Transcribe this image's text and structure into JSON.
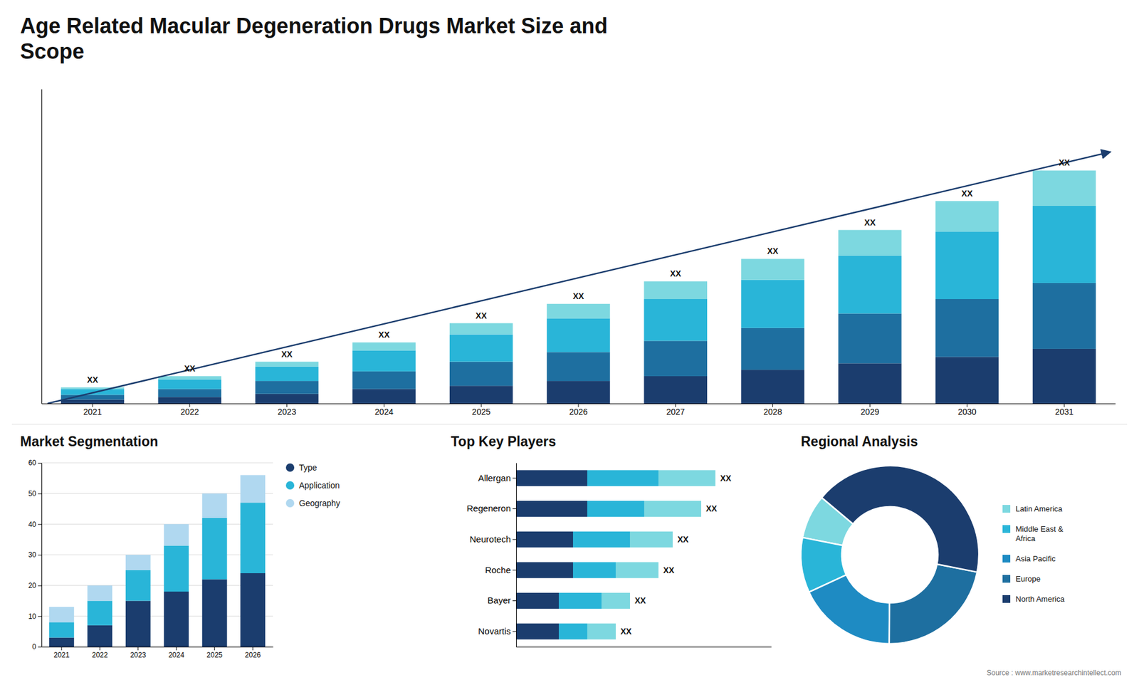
{
  "chart_data": [
    {
      "type": "bar",
      "title": "Age Related Macular Degeneration Drugs Market Size and\nScope",
      "stacked": true,
      "categories": [
        "2021",
        "2022",
        "2023",
        "2024",
        "2025",
        "2026",
        "2027",
        "2028",
        "2029",
        "2030",
        "2031"
      ],
      "series": [
        {
          "color": "#1b3d6e",
          "values": [
            1.2,
            2.0,
            3.0,
            4.5,
            5.5,
            7.0,
            8.5,
            10.5,
            12.5,
            14.5,
            17.0
          ]
        },
        {
          "color": "#1e6fa0",
          "values": [
            1.5,
            2.5,
            4.0,
            5.5,
            7.5,
            9.0,
            11.0,
            13.0,
            15.5,
            18.0,
            20.5
          ]
        },
        {
          "color": "#29b5d8",
          "values": [
            1.8,
            3.0,
            4.5,
            6.5,
            8.5,
            10.5,
            13.0,
            15.0,
            18.0,
            21.0,
            24.0
          ]
        },
        {
          "color": "#7dd8e0",
          "values": [
            0.5,
            1.0,
            1.5,
            2.5,
            3.5,
            4.5,
            5.5,
            6.5,
            8.0,
            9.5,
            11.0
          ],
          "value_labels": [
            "XX",
            "XX",
            "XX",
            "XX",
            "XX",
            "XX",
            "XX",
            "XX",
            "XX",
            "XX",
            "XX"
          ]
        }
      ],
      "ylim": [
        0,
        97.875
      ],
      "tick_labels": "x",
      "annotations": [
        "Source : www.marketresearchintellect.com"
      ]
    },
    {
      "type": "bar",
      "title": "Market Segmentation",
      "stacked": true,
      "categories": [
        "2021",
        "2022",
        "2023",
        "2024",
        "2025",
        "2026"
      ],
      "series": [
        {
          "name": "Type",
          "color": "#1b3d6e",
          "values": [
            3,
            7,
            15,
            18,
            22,
            24
          ]
        },
        {
          "name": "Application",
          "color": "#29b5d8",
          "values": [
            5,
            8,
            10,
            15,
            20,
            23
          ]
        },
        {
          "name": "Geography",
          "color": "#b0d8f0",
          "values": [
            5,
            5,
            5,
            7,
            8,
            9
          ]
        }
      ],
      "ylim": [
        0,
        60
      ],
      "yticks": [
        0,
        10,
        20,
        30,
        40,
        50,
        60
      ],
      "grid": true,
      "legend": "right"
    },
    {
      "type": "bar",
      "title": "Top Key Players",
      "orientation": "horizontal",
      "stacked": true,
      "categories": [
        "Allergan",
        "Regeneron",
        "Neurotech",
        "Roche",
        "Bayer",
        "Novartis"
      ],
      "series": [
        {
          "color": "#1b3d6e",
          "values": [
            5,
            5,
            4,
            4,
            3,
            3
          ]
        },
        {
          "color": "#29b5d8",
          "values": [
            5,
            4,
            4,
            3,
            3,
            2
          ]
        },
        {
          "color": "#7dd8e0",
          "values": [
            4,
            4,
            3,
            3,
            2,
            2
          ],
          "value_labels": [
            "XX",
            "XX",
            "XX",
            "XX",
            "XX",
            "XX"
          ]
        }
      ],
      "xlim": [
        0,
        17.92
      ],
      "tick_labels": "y"
    },
    {
      "type": "pie",
      "title": "Regional Analysis",
      "categories": [
        "Latin America",
        "Middle East &\nAfrica",
        "Asia Pacific",
        "Europe",
        "North America"
      ],
      "values": [
        8,
        10,
        18,
        22,
        42
      ],
      "colors": [
        "#7dd8e0",
        "#29b5d8",
        "#1e8bc3",
        "#1e6fa0",
        "#1b3d6e"
      ],
      "legend": "right"
    }
  ]
}
